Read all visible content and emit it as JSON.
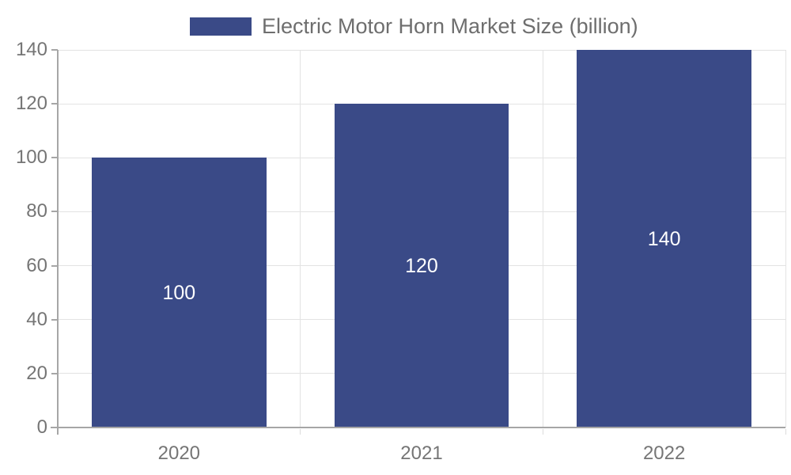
{
  "legend": {
    "label": "Electric Motor Horn Market Size (billion)"
  },
  "chart_data": {
    "type": "bar",
    "categories": [
      "2020",
      "2021",
      "2022"
    ],
    "values": [
      100,
      120,
      140
    ],
    "series_name": "Electric Motor Horn Market Size (billion)",
    "title": "Electric Motor Horn Market Size (billion)",
    "xlabel": "",
    "ylabel": "",
    "ylim": [
      0,
      140
    ],
    "yticks": [
      0,
      20,
      40,
      60,
      80,
      100,
      120,
      140
    ],
    "grid": true,
    "legend_position": "top-center",
    "data_labels": [
      "100",
      "120",
      "140"
    ],
    "colors": {
      "bar": "#3A4A87",
      "bar_value_label": "#FFFFFF",
      "axis_line": "#A6A6A6",
      "gridline": "#E3E3E3",
      "tick_text": "#757575",
      "legend_text": "#6E6E6E",
      "background": "#FFFFFF"
    }
  }
}
